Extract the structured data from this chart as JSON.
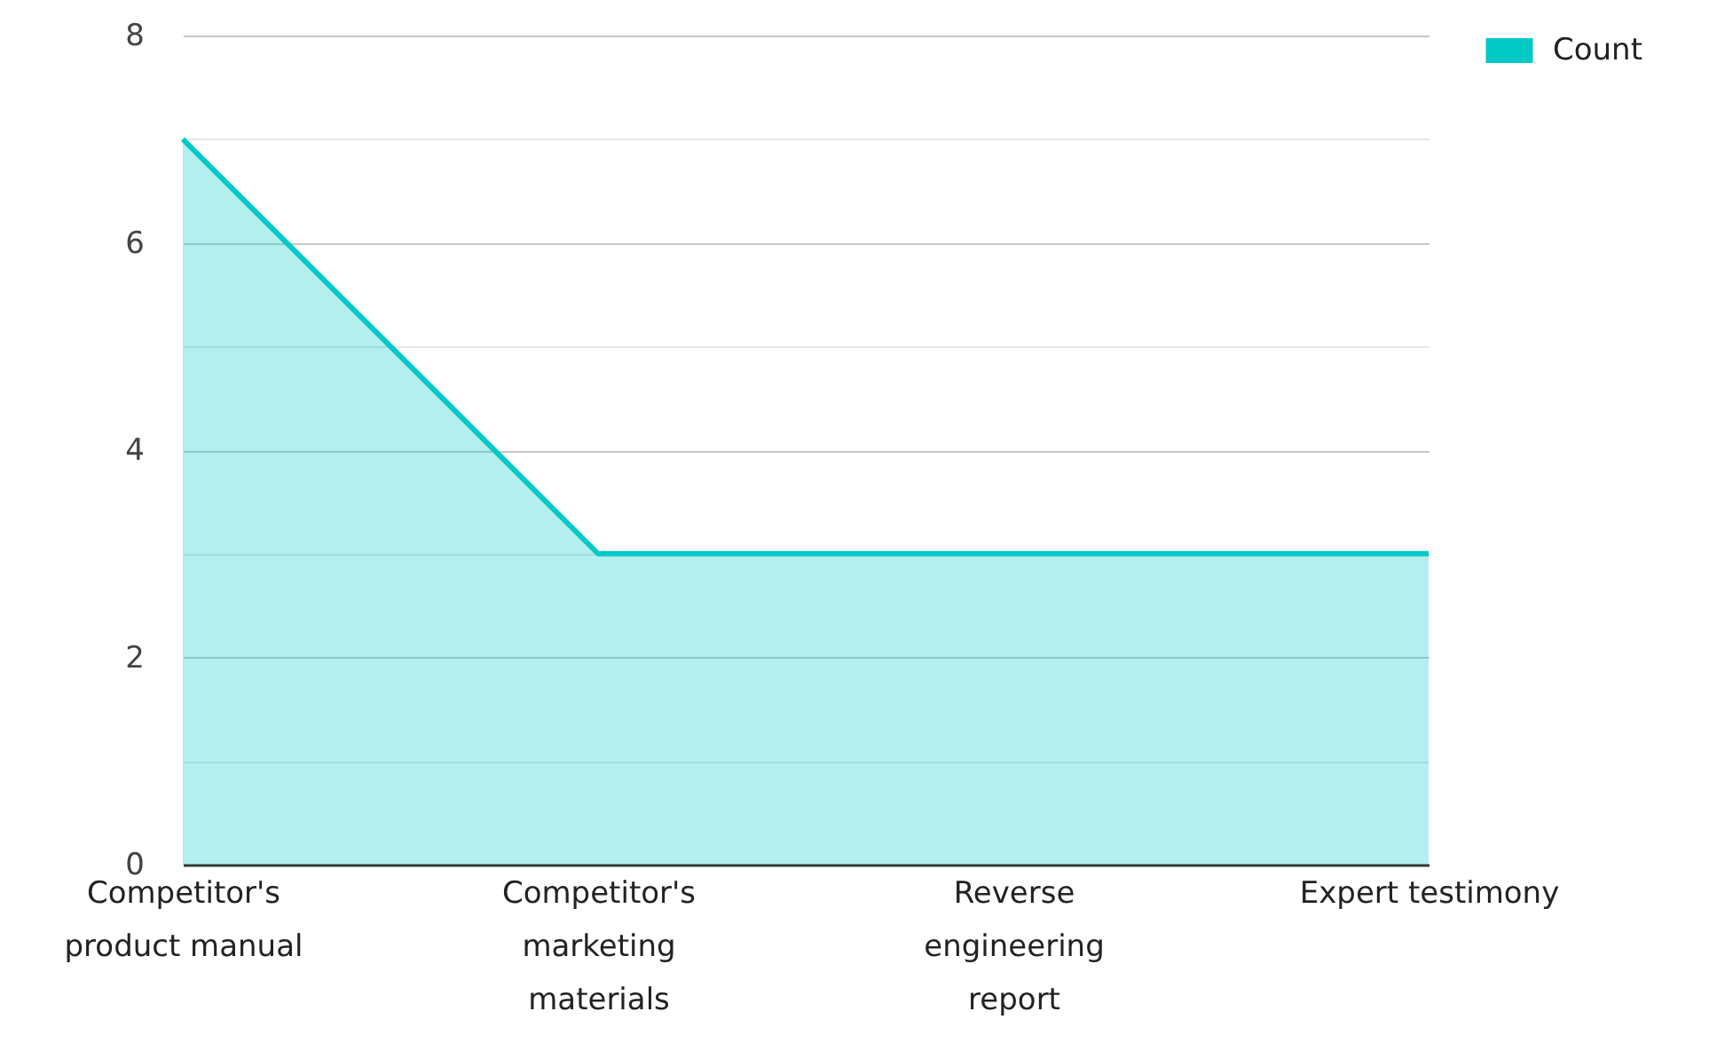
{
  "chart_data": {
    "type": "area",
    "categories": [
      "Competitor's product manual",
      "Competitor's marketing materials",
      "Reverse engineering report",
      "Expert testimony"
    ],
    "series": [
      {
        "name": "Count",
        "color": "#00c9c6",
        "values": [
          7,
          3,
          3,
          3
        ]
      }
    ],
    "ylim": [
      0,
      8
    ],
    "yticks": [
      0,
      {
        "value": 1,
        "label": null
      },
      2,
      {
        "value": 3,
        "label": null
      },
      4,
      {
        "value": 5,
        "label": null
      },
      6,
      {
        "value": 7,
        "label": null
      },
      8
    ],
    "grid": "y",
    "legend": "top right",
    "marker": "none"
  }
}
